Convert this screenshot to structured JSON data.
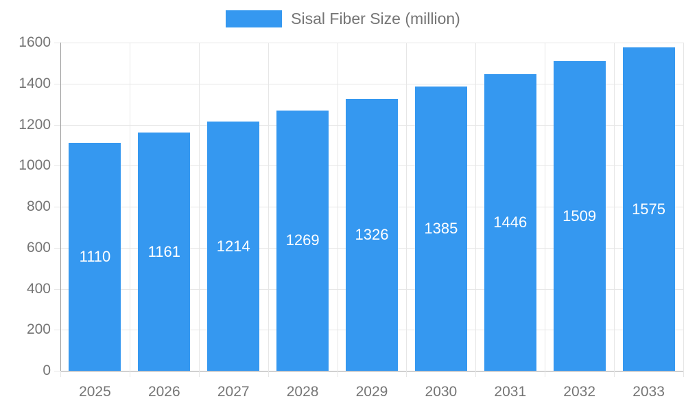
{
  "chart_data": {
    "type": "bar",
    "title": "Sisal Fiber Size (million)",
    "categories": [
      "2025",
      "2026",
      "2027",
      "2028",
      "2029",
      "2030",
      "2031",
      "2032",
      "2033"
    ],
    "values": [
      1110,
      1161,
      1214,
      1269,
      1326,
      1385,
      1446,
      1509,
      1575
    ],
    "xlabel": "",
    "ylabel": "",
    "ylim": [
      0,
      1600
    ],
    "ytick_step": 200,
    "grid": true,
    "legend_position": "top-center",
    "bar_label_position": "inside-middle",
    "colors": {
      "bar": "#3598f0",
      "bar_label": "#ffffff",
      "axis_text": "#757575",
      "legend_text": "#757575",
      "gridline": "#e6e6e6",
      "axis_line": "#9e9e9e",
      "background": "#ffffff"
    }
  }
}
